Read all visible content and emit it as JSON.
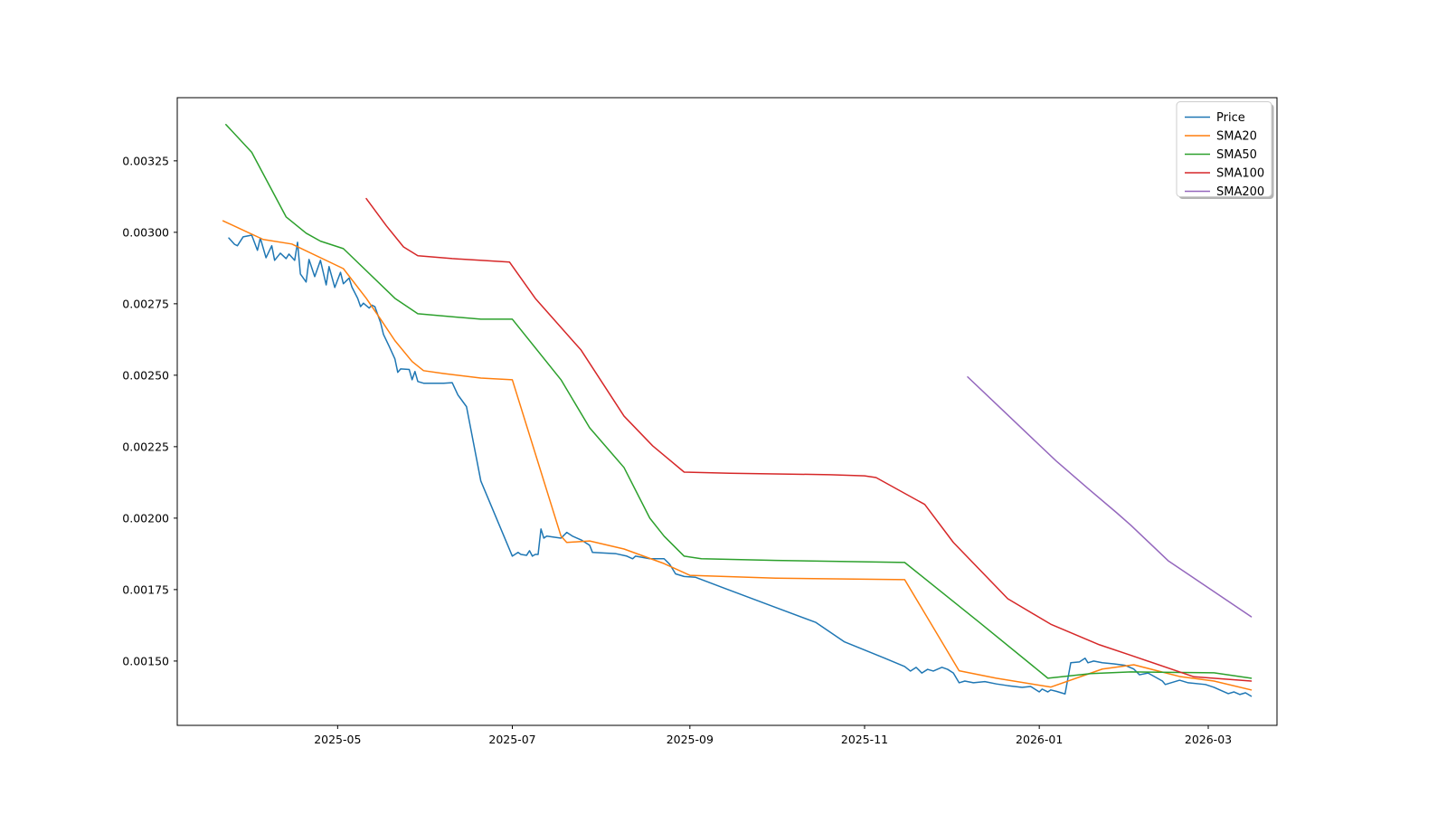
{
  "figure": {
    "background": "#ffffff",
    "spine_color": "#000000",
    "tick_color": "#000000"
  },
  "chart_data": {
    "type": "line",
    "title": "",
    "xlabel": "",
    "ylabel": "",
    "grid": false,
    "x_domain": [
      "2025-03-06",
      "2026-03-25"
    ],
    "y_domain": [
      0.001275,
      0.003471
    ],
    "x_ticks": [
      {
        "label": "2025-05",
        "date": "2025-05-01"
      },
      {
        "label": "2025-07",
        "date": "2025-07-01"
      },
      {
        "label": "2025-09",
        "date": "2025-09-01"
      },
      {
        "label": "2025-11",
        "date": "2025-11-01"
      },
      {
        "label": "2026-01",
        "date": "2026-01-01"
      },
      {
        "label": "2026-03",
        "date": "2026-03-01"
      }
    ],
    "y_ticks": [
      {
        "label": "0.00150",
        "value": 0.0015
      },
      {
        "label": "0.00175",
        "value": 0.00175
      },
      {
        "label": "0.00200",
        "value": 0.002
      },
      {
        "label": "0.00225",
        "value": 0.00225
      },
      {
        "label": "0.00250",
        "value": 0.0025
      },
      {
        "label": "0.00275",
        "value": 0.00275
      },
      {
        "label": "0.00300",
        "value": 0.003
      },
      {
        "label": "0.00325",
        "value": 0.00325
      }
    ],
    "legend": {
      "position": "upper right",
      "entries": [
        "Price",
        "SMA20",
        "SMA50",
        "SMA100",
        "SMA200"
      ],
      "border_color": "#cccccc",
      "shadow_color": "#b3b3b3",
      "fill": "#ffffff"
    },
    "series": [
      {
        "name": "Price",
        "color": "#1f77b4",
        "points": [
          [
            "2025-03-24",
            0.00298
          ],
          [
            "2025-03-26",
            0.002958
          ],
          [
            "2025-03-27",
            0.002953
          ],
          [
            "2025-03-29",
            0.002984
          ],
          [
            "2025-04-01",
            0.00299
          ],
          [
            "2025-04-03",
            0.002937
          ],
          [
            "2025-04-04",
            0.00298
          ],
          [
            "2025-04-06",
            0.002911
          ],
          [
            "2025-04-08",
            0.002953
          ],
          [
            "2025-04-09",
            0.002902
          ],
          [
            "2025-04-11",
            0.002927
          ],
          [
            "2025-04-13",
            0.002908
          ],
          [
            "2025-04-14",
            0.002924
          ],
          [
            "2025-04-16",
            0.002902
          ],
          [
            "2025-04-17",
            0.002965
          ],
          [
            "2025-04-18",
            0.002854
          ],
          [
            "2025-04-20",
            0.002826
          ],
          [
            "2025-04-21",
            0.002905
          ],
          [
            "2025-04-23",
            0.002845
          ],
          [
            "2025-04-25",
            0.002902
          ],
          [
            "2025-04-27",
            0.002816
          ],
          [
            "2025-04-28",
            0.00288
          ],
          [
            "2025-04-30",
            0.002807
          ],
          [
            "2025-05-02",
            0.00286
          ],
          [
            "2025-05-03",
            0.00282
          ],
          [
            "2025-05-05",
            0.00284
          ],
          [
            "2025-05-06",
            0.002808
          ],
          [
            "2025-05-08",
            0.002769
          ],
          [
            "2025-05-09",
            0.00274
          ],
          [
            "2025-05-10",
            0.002752
          ],
          [
            "2025-05-12",
            0.002735
          ],
          [
            "2025-05-13",
            0.002745
          ],
          [
            "2025-05-14",
            0.00274
          ],
          [
            "2025-05-16",
            0.002684
          ],
          [
            "2025-05-17",
            0.002643
          ],
          [
            "2025-05-19",
            0.002601
          ],
          [
            "2025-05-21",
            0.002557
          ],
          [
            "2025-05-22",
            0.00251
          ],
          [
            "2025-05-23",
            0.002522
          ],
          [
            "2025-05-26",
            0.00252
          ],
          [
            "2025-05-27",
            0.002484
          ],
          [
            "2025-05-28",
            0.002513
          ],
          [
            "2025-05-29",
            0.002478
          ],
          [
            "2025-05-31",
            0.002472
          ],
          [
            "2025-06-07",
            0.002472
          ],
          [
            "2025-06-10",
            0.002474
          ],
          [
            "2025-06-12",
            0.002431
          ],
          [
            "2025-06-15",
            0.00239
          ],
          [
            "2025-06-20",
            0.00213
          ],
          [
            "2025-07-01",
            0.001867
          ],
          [
            "2025-07-03",
            0.00188
          ],
          [
            "2025-07-04",
            0.001873
          ],
          [
            "2025-07-06",
            0.00187
          ],
          [
            "2025-07-07",
            0.001886
          ],
          [
            "2025-07-08",
            0.001867
          ],
          [
            "2025-07-09",
            0.001873
          ],
          [
            "2025-07-10",
            0.001873
          ],
          [
            "2025-07-11",
            0.001962
          ],
          [
            "2025-07-12",
            0.00193
          ],
          [
            "2025-07-13",
            0.001937
          ],
          [
            "2025-07-18",
            0.00193
          ],
          [
            "2025-07-20",
            0.00195
          ],
          [
            "2025-07-22",
            0.001937
          ],
          [
            "2025-07-25",
            0.001924
          ],
          [
            "2025-07-28",
            0.001905
          ],
          [
            "2025-07-29",
            0.00188
          ],
          [
            "2025-08-06",
            0.001876
          ],
          [
            "2025-08-10",
            0.001867
          ],
          [
            "2025-08-12",
            0.001858
          ],
          [
            "2025-08-13",
            0.001867
          ],
          [
            "2025-08-18",
            0.001858
          ],
          [
            "2025-08-23",
            0.001858
          ],
          [
            "2025-08-25",
            0.001838
          ],
          [
            "2025-08-27",
            0.001805
          ],
          [
            "2025-08-30",
            0.001796
          ],
          [
            "2025-09-03",
            0.001793
          ],
          [
            "2025-09-13",
            0.001755
          ],
          [
            "2025-09-29",
            0.001695
          ],
          [
            "2025-10-15",
            0.001635
          ],
          [
            "2025-10-25",
            0.001567
          ],
          [
            "2025-11-08",
            0.00151
          ],
          [
            "2025-11-15",
            0.001481
          ],
          [
            "2025-11-17",
            0.001465
          ],
          [
            "2025-11-19",
            0.001478
          ],
          [
            "2025-11-21",
            0.001458
          ],
          [
            "2025-11-23",
            0.001471
          ],
          [
            "2025-11-25",
            0.001465
          ],
          [
            "2025-11-28",
            0.001478
          ],
          [
            "2025-11-30",
            0.001471
          ],
          [
            "2025-12-02",
            0.001458
          ],
          [
            "2025-12-04",
            0.001424
          ],
          [
            "2025-12-06",
            0.00143
          ],
          [
            "2025-12-09",
            0.001424
          ],
          [
            "2025-12-13",
            0.001428
          ],
          [
            "2025-12-17",
            0.00142
          ],
          [
            "2025-12-21",
            0.001414
          ],
          [
            "2025-12-26",
            0.001408
          ],
          [
            "2025-12-29",
            0.001411
          ],
          [
            "2026-01-01",
            0.001392
          ],
          [
            "2026-01-02",
            0.001402
          ],
          [
            "2026-01-04",
            0.001392
          ],
          [
            "2026-01-05",
            0.001399
          ],
          [
            "2026-01-07",
            0.001394
          ],
          [
            "2026-01-10",
            0.001385
          ],
          [
            "2026-01-12",
            0.001494
          ],
          [
            "2026-01-15",
            0.001497
          ],
          [
            "2026-01-17",
            0.00151
          ],
          [
            "2026-01-18",
            0.001494
          ],
          [
            "2026-01-20",
            0.0015
          ],
          [
            "2026-01-23",
            0.001494
          ],
          [
            "2026-01-27",
            0.00149
          ],
          [
            "2026-01-31",
            0.001485
          ],
          [
            "2026-02-03",
            0.001472
          ],
          [
            "2026-02-05",
            0.001452
          ],
          [
            "2026-02-08",
            0.001458
          ],
          [
            "2026-02-13",
            0.00143
          ],
          [
            "2026-02-14",
            0.001418
          ],
          [
            "2026-02-19",
            0.001433
          ],
          [
            "2026-02-22",
            0.001424
          ],
          [
            "2026-02-28",
            0.001418
          ],
          [
            "2026-03-03",
            0.001408
          ],
          [
            "2026-03-08",
            0.001386
          ],
          [
            "2026-03-10",
            0.001392
          ],
          [
            "2026-03-12",
            0.001383
          ],
          [
            "2026-03-14",
            0.001389
          ],
          [
            "2026-03-16",
            0.001377
          ]
        ]
      },
      {
        "name": "SMA20",
        "color": "#ff7f0e",
        "points": [
          [
            "2025-03-22",
            0.00304
          ],
          [
            "2025-04-05",
            0.002975
          ],
          [
            "2025-04-15",
            0.002959
          ],
          [
            "2025-05-03",
            0.002873
          ],
          [
            "2025-05-11",
            0.002769
          ],
          [
            "2025-05-16",
            0.002696
          ],
          [
            "2025-05-21",
            0.002621
          ],
          [
            "2025-05-27",
            0.002548
          ],
          [
            "2025-05-31",
            0.002516
          ],
          [
            "2025-06-07",
            0.002506
          ],
          [
            "2025-06-20",
            0.00249
          ],
          [
            "2025-07-01",
            0.002484
          ],
          [
            "2025-07-18",
            0.001937
          ],
          [
            "2025-07-20",
            0.001915
          ],
          [
            "2025-07-28",
            0.00192
          ],
          [
            "2025-08-09",
            0.001892
          ],
          [
            "2025-08-23",
            0.001841
          ],
          [
            "2025-09-01",
            0.0018
          ],
          [
            "2025-10-01",
            0.00179
          ],
          [
            "2025-11-15",
            0.001785
          ],
          [
            "2025-12-04",
            0.001466
          ],
          [
            "2025-12-17",
            0.00144
          ],
          [
            "2026-01-05",
            0.001409
          ],
          [
            "2026-01-23",
            0.001472
          ],
          [
            "2026-02-03",
            0.001487
          ],
          [
            "2026-02-19",
            0.001446
          ],
          [
            "2026-03-03",
            0.00143
          ],
          [
            "2026-03-16",
            0.001399
          ]
        ]
      },
      {
        "name": "SMA50",
        "color": "#2ca02c",
        "points": [
          [
            "2025-03-23",
            0.003377
          ],
          [
            "2025-04-01",
            0.00328
          ],
          [
            "2025-04-13",
            0.003054
          ],
          [
            "2025-04-20",
            0.002997
          ],
          [
            "2025-04-25",
            0.002969
          ],
          [
            "2025-05-03",
            0.002943
          ],
          [
            "2025-05-21",
            0.002769
          ],
          [
            "2025-05-29",
            0.002715
          ],
          [
            "2025-06-20",
            0.002696
          ],
          [
            "2025-07-01",
            0.002696
          ],
          [
            "2025-07-18",
            0.002484
          ],
          [
            "2025-07-28",
            0.002316
          ],
          [
            "2025-08-09",
            0.002177
          ],
          [
            "2025-08-18",
            0.002
          ],
          [
            "2025-08-23",
            0.001937
          ],
          [
            "2025-08-30",
            0.001867
          ],
          [
            "2025-09-05",
            0.001858
          ],
          [
            "2025-10-01",
            0.001852
          ],
          [
            "2025-11-15",
            0.001845
          ],
          [
            "2025-12-11",
            0.001636
          ],
          [
            "2026-01-04",
            0.00144
          ],
          [
            "2026-01-19",
            0.001456
          ],
          [
            "2026-02-02",
            0.001462
          ],
          [
            "2026-03-03",
            0.001459
          ],
          [
            "2026-03-16",
            0.00144
          ]
        ]
      },
      {
        "name": "SMA100",
        "color": "#d62728",
        "points": [
          [
            "2025-05-11",
            0.003118
          ],
          [
            "2025-05-18",
            0.003023
          ],
          [
            "2025-05-24",
            0.002949
          ],
          [
            "2025-05-29",
            0.002918
          ],
          [
            "2025-06-10",
            0.002908
          ],
          [
            "2025-06-30",
            0.002896
          ],
          [
            "2025-07-09",
            0.002769
          ],
          [
            "2025-07-25",
            0.002588
          ],
          [
            "2025-08-09",
            0.002357
          ],
          [
            "2025-08-19",
            0.002253
          ],
          [
            "2025-08-30",
            0.002161
          ],
          [
            "2025-09-15",
            0.002157
          ],
          [
            "2025-10-20",
            0.002152
          ],
          [
            "2025-11-01",
            0.002148
          ],
          [
            "2025-11-05",
            0.002142
          ],
          [
            "2025-11-22",
            0.002048
          ],
          [
            "2025-12-02",
            0.001915
          ],
          [
            "2025-12-21",
            0.001718
          ],
          [
            "2026-01-05",
            0.001629
          ],
          [
            "2026-01-22",
            0.001557
          ],
          [
            "2026-02-02",
            0.00152
          ],
          [
            "2026-02-24",
            0.001445
          ],
          [
            "2026-03-16",
            0.00143
          ]
        ]
      },
      {
        "name": "SMA200",
        "color": "#9467bd",
        "points": [
          [
            "2025-12-07",
            0.002494
          ],
          [
            "2025-12-17",
            0.002399
          ],
          [
            "2025-12-28",
            0.002294
          ],
          [
            "2026-01-07",
            0.002199
          ],
          [
            "2026-01-18",
            0.002104
          ],
          [
            "2026-01-28",
            0.002019
          ],
          [
            "2026-02-02",
            0.001975
          ],
          [
            "2026-02-15",
            0.001851
          ],
          [
            "2026-03-16",
            0.001655
          ]
        ]
      }
    ]
  }
}
